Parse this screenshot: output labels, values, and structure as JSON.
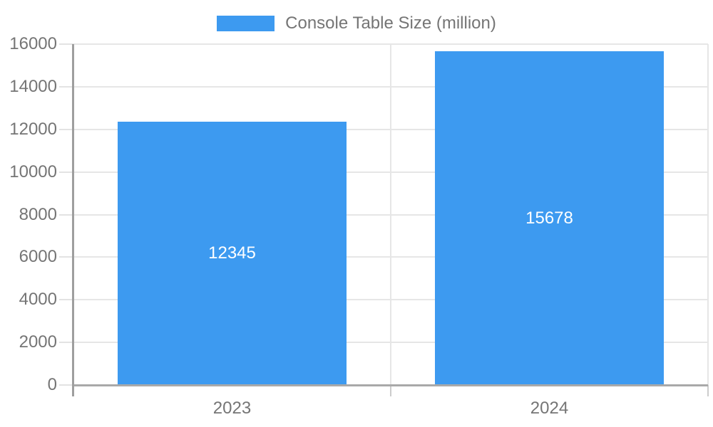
{
  "legend": {
    "label": "Console Table Size (million)",
    "swatch_color": "#3d9af0",
    "position": "top-center"
  },
  "chart_data": {
    "type": "bar",
    "title": "Console Table Size (million)",
    "categories": [
      "2023",
      "2024"
    ],
    "series": [
      {
        "name": "Console Table Size (million)",
        "values": [
          12345,
          15678
        ],
        "color": "#3d9af0"
      }
    ],
    "value_labels": [
      "12345",
      "15678"
    ],
    "value_label_color": "#ffffff",
    "xlabel": "",
    "ylabel": "",
    "ylim": [
      0,
      16000
    ],
    "yticks": [
      0,
      2000,
      4000,
      6000,
      8000,
      10000,
      12000,
      14000,
      16000
    ],
    "grid": true,
    "legend_position": "top-center"
  },
  "colors": {
    "bar": "#3d9af0",
    "gridline": "#e6e6e6",
    "axis": "#9e9e9e",
    "text": "#757575",
    "value_label": "#ffffff",
    "background": "#ffffff"
  }
}
